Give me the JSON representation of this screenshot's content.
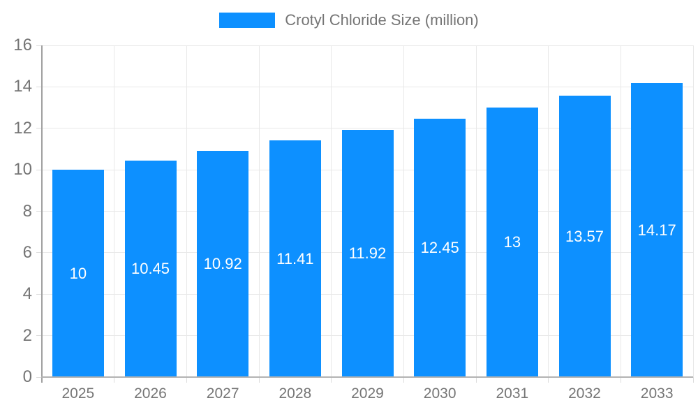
{
  "legend": {
    "label": "Crotyl Chloride Size (million)"
  },
  "chart_data": {
    "type": "bar",
    "title": "",
    "xlabel": "",
    "ylabel": "",
    "categories": [
      "2025",
      "2026",
      "2027",
      "2028",
      "2029",
      "2030",
      "2031",
      "2032",
      "2033"
    ],
    "series": [
      {
        "name": "Crotyl Chloride Size (million)",
        "values": [
          10,
          10.45,
          10.92,
          11.41,
          11.92,
          12.45,
          13,
          13.57,
          14.17
        ],
        "value_labels": [
          "10",
          "10.45",
          "10.92",
          "11.41",
          "11.92",
          "12.45",
          "13",
          "13.57",
          "14.17"
        ]
      }
    ],
    "ylim": [
      0,
      16
    ],
    "ytick_step": 2,
    "ytick_labels": [
      "0",
      "2",
      "4",
      "6",
      "8",
      "10",
      "12",
      "14",
      "16"
    ],
    "grid": true,
    "legend_position": "top-center",
    "colors": {
      "bar": "#0d90ff",
      "value_label": "#ffffff",
      "axis_text": "#757575",
      "gridline": "#e8e8e8",
      "axis_line_y": "#a0a0a0",
      "axis_line_x": "#b3b3b3",
      "background": "#ffffff"
    }
  }
}
